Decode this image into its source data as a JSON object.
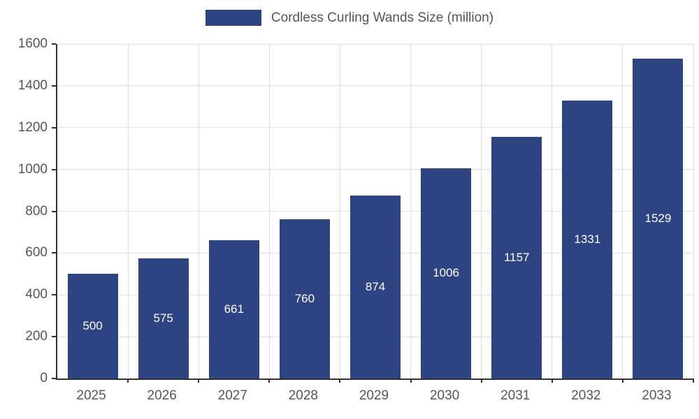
{
  "legend": {
    "label": "Cordless Curling Wands Size (million)",
    "swatch_color": "#2e4482"
  },
  "chart_data": {
    "type": "bar",
    "title": "Cordless Curling Wands Size (million)",
    "categories": [
      "2025",
      "2026",
      "2027",
      "2028",
      "2029",
      "2030",
      "2031",
      "2032",
      "2033"
    ],
    "values": [
      500,
      575,
      661,
      760,
      874,
      1006,
      1157,
      1331,
      1529
    ],
    "xlabel": "",
    "ylabel": "",
    "ylim": [
      0,
      1600
    ],
    "yticks": [
      0,
      200,
      400,
      600,
      800,
      1000,
      1200,
      1400,
      1600
    ],
    "bar_color": "#2e4482",
    "value_label_color": "#ffffff",
    "grid": true,
    "legend_position": "top"
  }
}
